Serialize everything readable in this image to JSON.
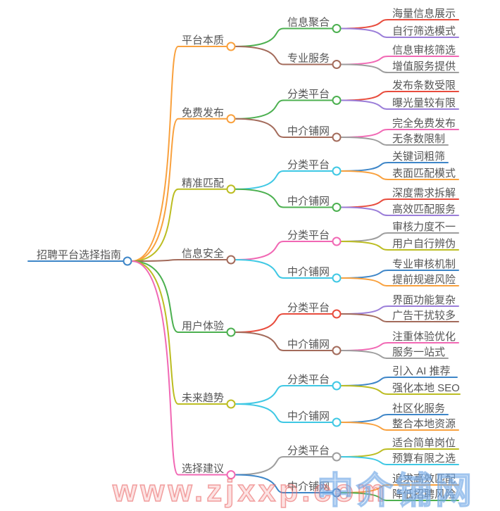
{
  "colors": {
    "text": "#555555",
    "background": "#ffffff"
  },
  "watermark": {
    "url": "www.zjxxp.com",
    "brand": "中介铺网"
  },
  "mindmap": {
    "root": {
      "label": "招聘平台选择指南",
      "color": "#3e86c8"
    },
    "branches": [
      {
        "label": "平台本质",
        "color": "#f9a13e",
        "children": [
          {
            "label": "信息聚合",
            "color": "#4cb050",
            "leaves": [
              {
                "label": "海量信息展示",
                "color": "#e84c3d"
              },
              {
                "label": "自行筛选模式",
                "color": "#9b7ed9"
              }
            ]
          },
          {
            "label": "专业服务",
            "color": "#a36b5b",
            "leaves": [
              {
                "label": "信息审核筛选",
                "color": "#f168b4"
              },
              {
                "label": "增值服务提供",
                "color": "#9e9e9e"
              }
            ]
          }
        ]
      },
      {
        "label": "免费发布",
        "color": "#f9a13e",
        "children": [
          {
            "label": "分类平台",
            "color": "#4cb050",
            "leaves": [
              {
                "label": "发布条数受限",
                "color": "#e84c3d"
              },
              {
                "label": "曝光量较有限",
                "color": "#9b7ed9"
              }
            ]
          },
          {
            "label": "中介铺网",
            "color": "#a36b5b",
            "leaves": [
              {
                "label": "完全免费发布",
                "color": "#f168b4"
              },
              {
                "label": "无条数限制",
                "color": "#9e9e9e"
              }
            ]
          }
        ]
      },
      {
        "label": "精准匹配",
        "color": "#bcbd22",
        "children": [
          {
            "label": "分类平台",
            "color": "#3fc8e4",
            "leaves": [
              {
                "label": "关键词粗筛",
                "color": "#3e86c8"
              },
              {
                "label": "表面匹配模式",
                "color": "#f9a13e"
              }
            ]
          },
          {
            "label": "中介铺网",
            "color": "#4cb050",
            "leaves": [
              {
                "label": "深度需求拆解",
                "color": "#e84c3d"
              },
              {
                "label": "高效匹配服务",
                "color": "#9b7ed9"
              }
            ]
          }
        ]
      },
      {
        "label": "信息安全",
        "color": "#a36b5b",
        "children": [
          {
            "label": "分类平台",
            "color": "#f168b4",
            "leaves": [
              {
                "label": "审核力度不一",
                "color": "#9e9e9e"
              },
              {
                "label": "用户自行辨伪",
                "color": "#bcbd22"
              }
            ]
          },
          {
            "label": "中介铺网",
            "color": "#3fc8e4",
            "leaves": [
              {
                "label": "专业审核机制",
                "color": "#3e86c8"
              },
              {
                "label": "提前规避风险",
                "color": "#f9a13e"
              }
            ]
          }
        ]
      },
      {
        "label": "用户体验",
        "color": "#4cb050",
        "children": [
          {
            "label": "分类平台",
            "color": "#e84c3d",
            "leaves": [
              {
                "label": "界面功能复杂",
                "color": "#9b7ed9"
              },
              {
                "label": "广告干扰较多",
                "color": "#a36b5b"
              }
            ]
          },
          {
            "label": "中介铺网",
            "color": "#a36b5b",
            "leaves": [
              {
                "label": "注重体验优化",
                "color": "#f168b4"
              },
              {
                "label": "服务一站式",
                "color": "#9e9e9e"
              }
            ]
          }
        ]
      },
      {
        "label": "未来趋势",
        "color": "#bcbd22",
        "children": [
          {
            "label": "分类平台",
            "color": "#3fc8e4",
            "leaves": [
              {
                "label": "引入 AI 推荐",
                "color": "#3e86c8"
              },
              {
                "label": "强化本地 SEO",
                "color": "#bcbd22"
              }
            ]
          },
          {
            "label": "中介铺网",
            "color": "#3fc8e4",
            "leaves": [
              {
                "label": "社区化服务",
                "color": "#3e86c8"
              },
              {
                "label": "整合本地资源",
                "color": "#f9a13e"
              }
            ]
          }
        ]
      },
      {
        "label": "选择建议",
        "color": "#f168b4",
        "children": [
          {
            "label": "分类平台",
            "color": "#9e9e9e",
            "leaves": [
              {
                "label": "适合简单岗位",
                "color": "#bcbd22"
              },
              {
                "label": "预算有限之选",
                "color": "#3fc8e4"
              }
            ]
          },
          {
            "label": "中介铺网",
            "color": "#3e86c8",
            "leaves": [
              {
                "label": "追求高效匹配",
                "color": "#f9a13e"
              },
              {
                "label": "降低招聘风险",
                "color": "#4cb050"
              }
            ]
          }
        ]
      }
    ]
  }
}
